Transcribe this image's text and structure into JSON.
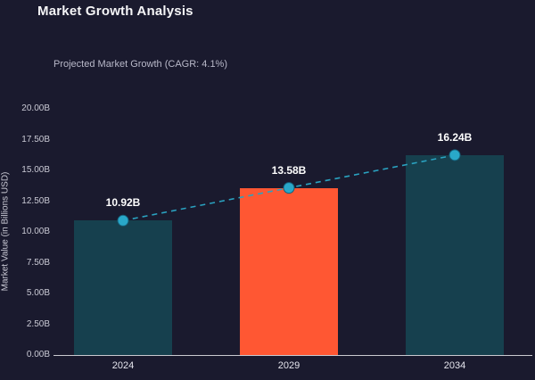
{
  "header": {
    "title": "Market Growth Analysis",
    "subtitle": "Projected Market Growth (CAGR: 4.1%)"
  },
  "chart_data": {
    "type": "bar",
    "title": "Market Growth Analysis",
    "subtitle": "Projected Market Growth (CAGR: 4.1%)",
    "categories": [
      "2024",
      "2029",
      "2034"
    ],
    "values": [
      10.92,
      13.58,
      16.24
    ],
    "value_labels": [
      "10.92B",
      "13.58B",
      "16.24B"
    ],
    "xlabel": "",
    "ylabel": "Market Value (in Billions USD)",
    "ylim": [
      0,
      20
    ],
    "ytick_labels": [
      "0.00B",
      "2.50B",
      "5.00B",
      "7.50B",
      "10.00B",
      "12.50B",
      "15.00B",
      "17.50B",
      "20.00B"
    ],
    "ytick_values": [
      0,
      2.5,
      5,
      7.5,
      10,
      12.5,
      15,
      17.5,
      20
    ],
    "grid": false,
    "legend": "none",
    "overlay_line": true,
    "colors": {
      "background": "#1a1a2e",
      "bar_colors": [
        "#16404e",
        "#ff5733",
        "#16404e"
      ],
      "line_color": "#2aa2c0",
      "marker_color": "#29a8c9",
      "marker_stroke": "#15607a",
      "axis_line": "#c9c9d0"
    }
  }
}
